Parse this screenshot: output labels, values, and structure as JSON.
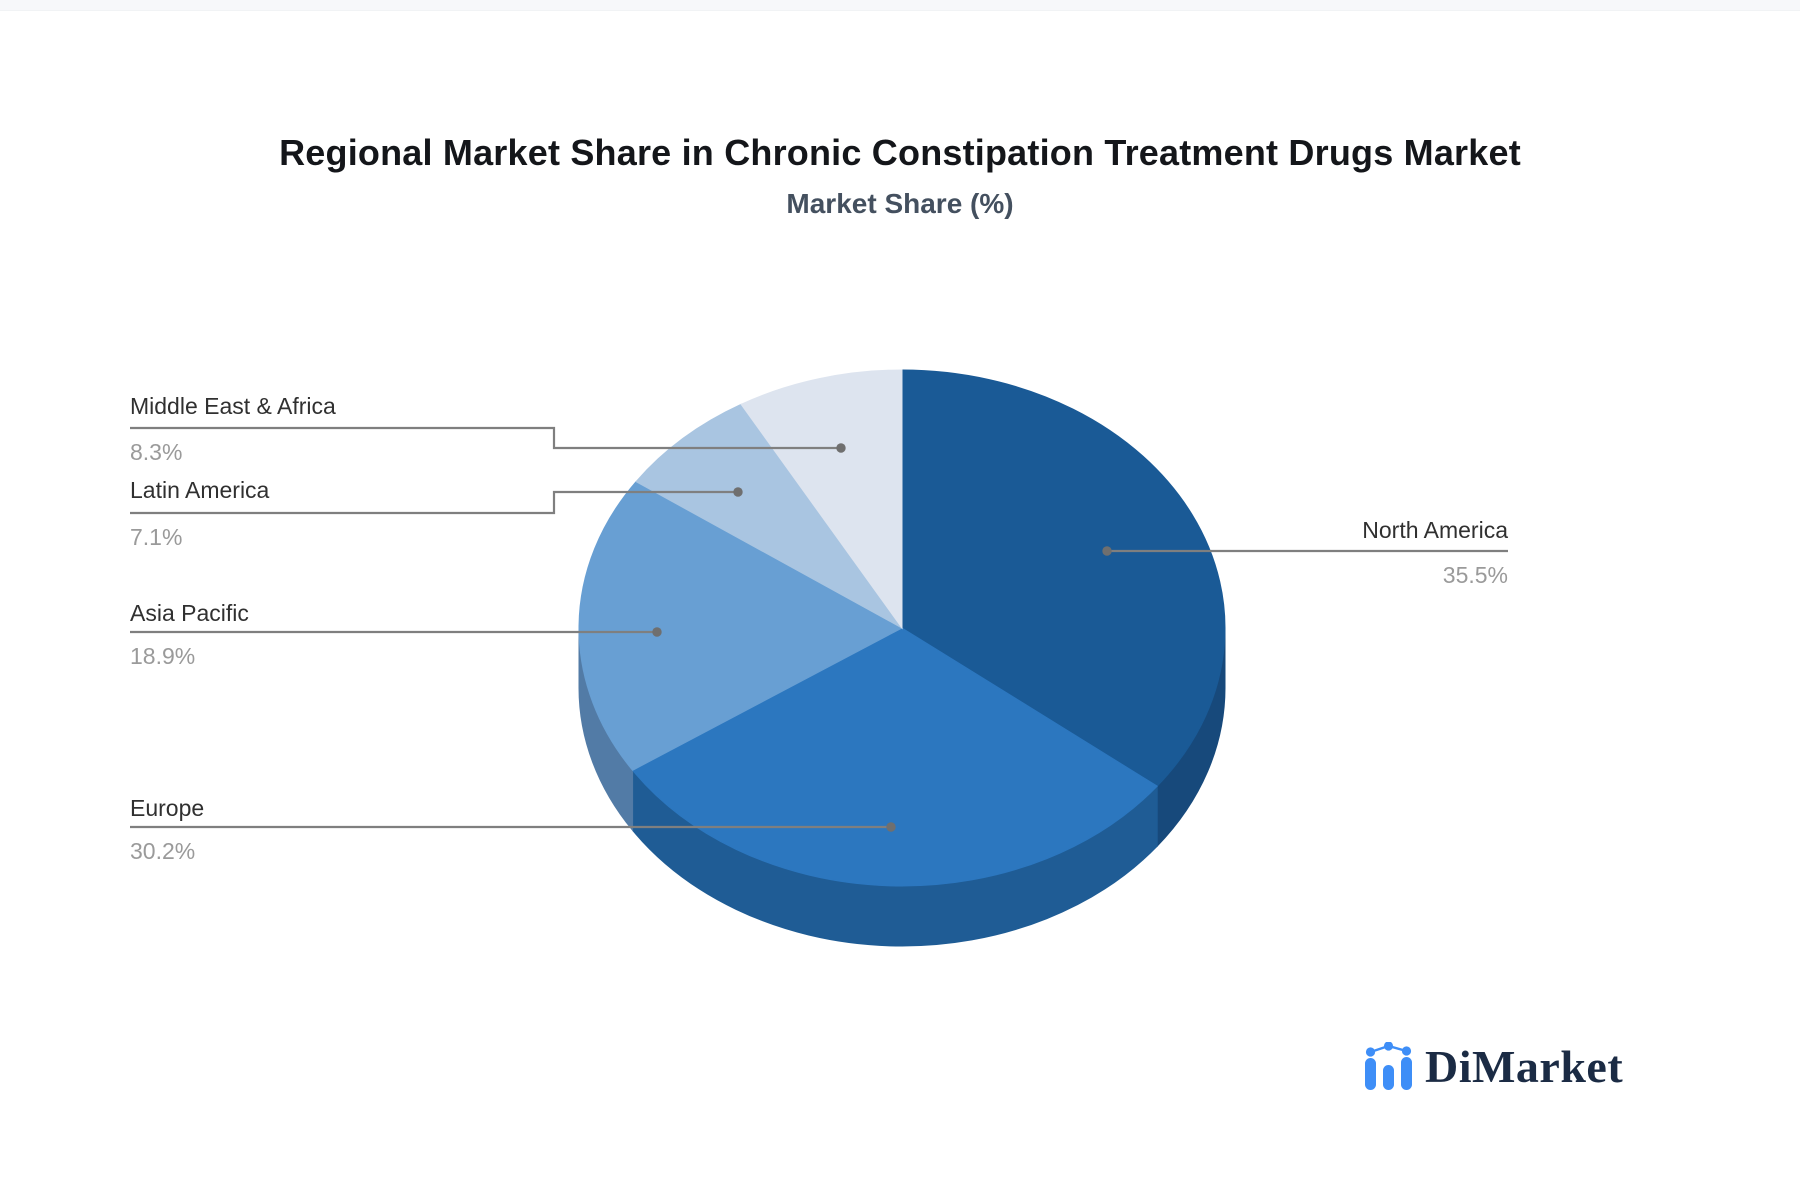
{
  "page": {
    "title": "Regional Market Share in Chronic Constipation Treatment Drugs Market",
    "subtitle": "Market Share (%)"
  },
  "chart_data": {
    "type": "pie",
    "effect": "3d",
    "title": "Regional Market Share in Chronic Constipation Treatment Drugs Market",
    "subtitle": "Market Share (%)",
    "unit": "%",
    "rotation": "clockwise-from-12-oclock",
    "legend_position": "callout-labels",
    "slices": [
      {
        "label": "North America",
        "value": 35.5,
        "display": "35.5%",
        "color": "#1a5a96",
        "side_color": "#17497b"
      },
      {
        "label": "Europe",
        "value": 30.2,
        "display": "30.2%",
        "color": "#2c77bf",
        "side_color": "#1f5c95"
      },
      {
        "label": "Asia Pacific",
        "value": 18.9,
        "display": "18.9%",
        "color": "#689fd3",
        "side_color": "#527ba6"
      },
      {
        "label": "Latin America",
        "value": 7.1,
        "display": "7.1%",
        "color": "#a9c5e1",
        "side_color": "#8cabc9"
      },
      {
        "label": "Middle East & Africa",
        "value": 8.3,
        "display": "8.3%",
        "color": "#dde4ef",
        "side_color": "#bcc8d8"
      }
    ]
  },
  "logo": {
    "text": "DiMarket",
    "icon": "bar-chart-logo-icon",
    "icon_color": "#3e8ef7",
    "text_color": "#1b2b44"
  },
  "colors": {
    "leader_line": "#7f7f7f",
    "leader_dot": "#6f6f6f",
    "label_text": "#303030",
    "value_text": "#9a9a9a",
    "title": "#14161a",
    "subtitle": "#44505f",
    "top_strip": "#f7f8fa"
  }
}
